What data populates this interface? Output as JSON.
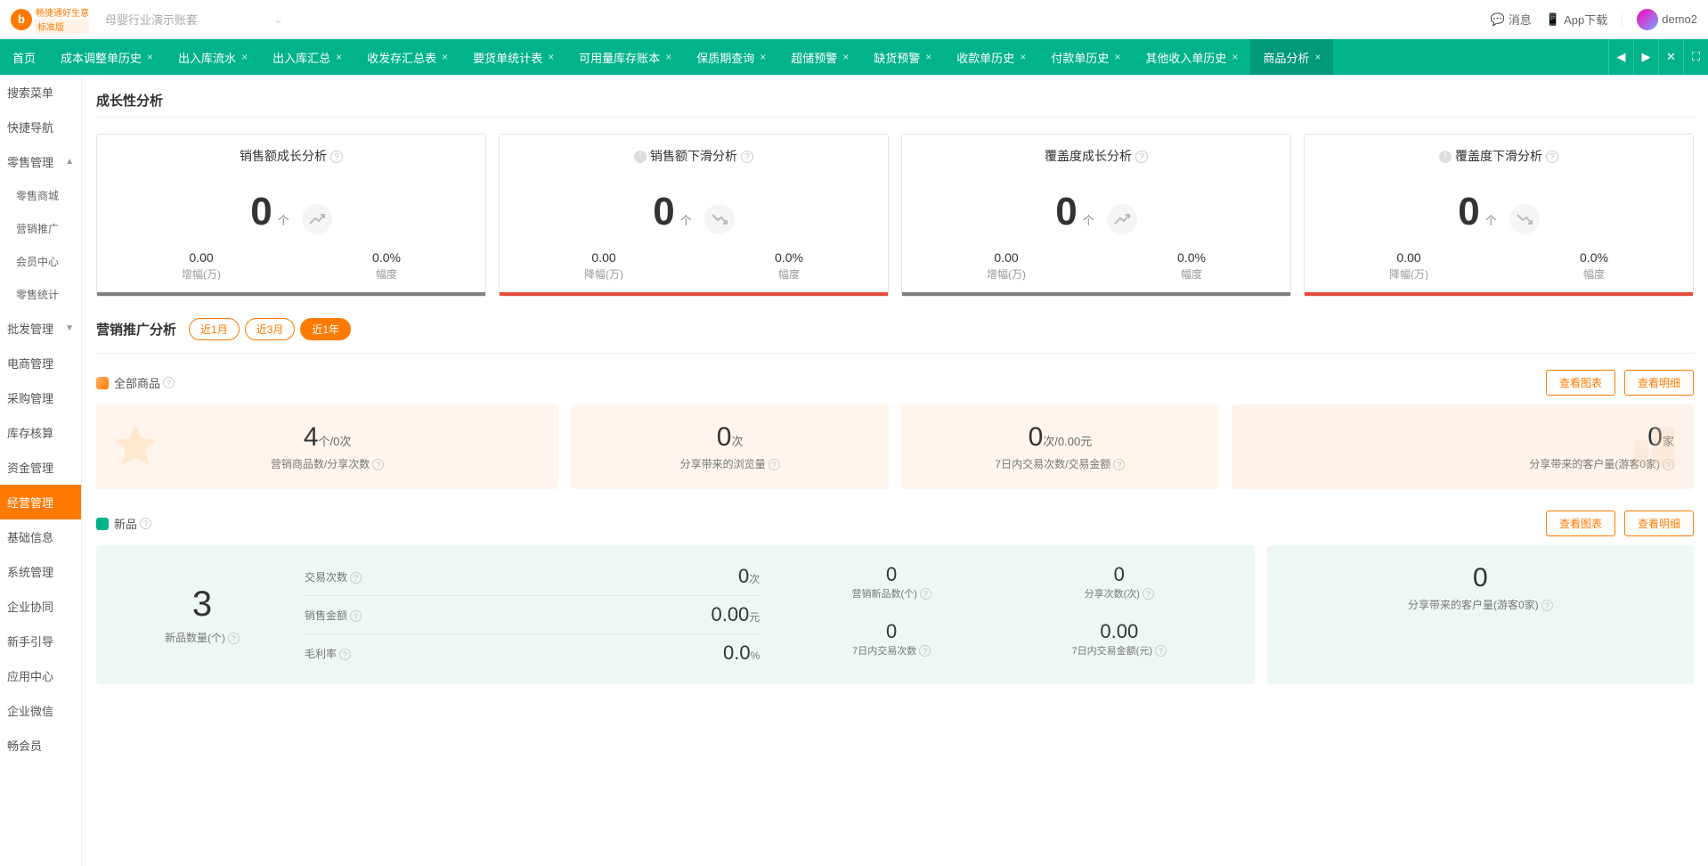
{
  "topbar": {
    "logo_text": "畅捷通好生意",
    "edition_badge": "标准版",
    "account_selector": "母婴行业演示账套",
    "msg_label": "消息",
    "download_label": "App下载",
    "username": "demo2"
  },
  "tabs": {
    "home": "首页",
    "items": [
      "成本调整单历史",
      "出入库流水",
      "出入库汇总",
      "收发存汇总表",
      "要货单统计表",
      "可用量库存账本",
      "保质期查询",
      "超储预警",
      "缺货预警",
      "收款单历史",
      "付款单历史",
      "其他收入单历史",
      "商品分析"
    ],
    "active_index": 12
  },
  "sidebar": {
    "items": [
      {
        "label": "搜索菜单",
        "type": "plain"
      },
      {
        "label": "快捷导航",
        "type": "plain"
      },
      {
        "label": "零售管理",
        "type": "expand",
        "expanded": true
      },
      {
        "label": "零售商城",
        "type": "sub"
      },
      {
        "label": "营销推广",
        "type": "sub"
      },
      {
        "label": "会员中心",
        "type": "sub"
      },
      {
        "label": "零售统计",
        "type": "sub"
      },
      {
        "label": "批发管理",
        "type": "expand",
        "expanded": false
      },
      {
        "label": "电商管理",
        "type": "plain"
      },
      {
        "label": "采购管理",
        "type": "plain"
      },
      {
        "label": "库存核算",
        "type": "plain"
      },
      {
        "label": "资金管理",
        "type": "plain"
      },
      {
        "label": "经营管理",
        "type": "active"
      },
      {
        "label": "基础信息",
        "type": "plain"
      },
      {
        "label": "系统管理",
        "type": "plain"
      },
      {
        "label": "企业协同",
        "type": "plain"
      },
      {
        "label": "新手引导",
        "type": "plain"
      },
      {
        "label": "应用中心",
        "type": "plain"
      },
      {
        "label": "企业微信",
        "type": "plain"
      },
      {
        "label": "畅会员",
        "type": "plain"
      }
    ]
  },
  "growth": {
    "section_title": "成长性分析",
    "cards": [
      {
        "title": "销售额成长分析",
        "warn": false,
        "value": "0",
        "unit": "个",
        "trend": "up",
        "left_val": "0.00",
        "left_lbl": "增幅(万)",
        "right_val": "0.0%",
        "right_lbl": "幅度",
        "bar": "gray"
      },
      {
        "title": "销售额下滑分析",
        "warn": true,
        "value": "0",
        "unit": "个",
        "trend": "down",
        "left_val": "0.00",
        "left_lbl": "降幅(万)",
        "right_val": "0.0%",
        "right_lbl": "幅度",
        "bar": "red"
      },
      {
        "title": "覆盖度成长分析",
        "warn": false,
        "value": "0",
        "unit": "个",
        "trend": "up",
        "left_val": "0.00",
        "left_lbl": "增幅(万)",
        "right_val": "0.0%",
        "right_lbl": "幅度",
        "bar": "gray"
      },
      {
        "title": "覆盖度下滑分析",
        "warn": true,
        "value": "0",
        "unit": "个",
        "trend": "down",
        "left_val": "0.00",
        "left_lbl": "降幅(万)",
        "right_val": "0.0%",
        "right_lbl": "幅度",
        "bar": "red"
      }
    ]
  },
  "marketing": {
    "section_title": "营销推广分析",
    "period_pills": [
      "近1月",
      "近3月",
      "近1年"
    ],
    "period_active": 2,
    "all_goods": {
      "header": "全部商品",
      "btn_chart": "查看图表",
      "btn_detail": "查看明细",
      "box1": {
        "value": "4",
        "unit": "个/0次",
        "sub": "营销商品数/分享次数"
      },
      "box2": {
        "value": "0",
        "unit": "次",
        "sub": "分享带来的浏览量"
      },
      "box3": {
        "value": "0",
        "unit": "次/0.00元",
        "sub": "7日内交易次数/交易金额"
      },
      "box4": {
        "value": "0",
        "unit": "家",
        "sub": "分享带来的客户量(游客0家)"
      }
    },
    "new_goods": {
      "header": "新品",
      "btn_chart": "查看图表",
      "btn_detail": "查看明细",
      "left": {
        "value": "3",
        "sub": "新品数量(个)"
      },
      "mid": [
        {
          "lbl": "交易次数",
          "val": "0",
          "unit": "次"
        },
        {
          "lbl": "销售金额",
          "val": "0.00",
          "unit": "元"
        },
        {
          "lbl": "毛利率",
          "val": "0.0",
          "unit": "%"
        }
      ],
      "grid": [
        {
          "v": "0",
          "l": "营销新品数(个)"
        },
        {
          "v": "0",
          "l": "分享次数(次)"
        },
        {
          "v": "0",
          "l": "7日内交易次数"
        },
        {
          "v": "0.00",
          "l": "7日内交易金额(元)"
        }
      ],
      "right": {
        "value": "0",
        "sub": "分享带来的客户量(游客0家)"
      }
    }
  }
}
